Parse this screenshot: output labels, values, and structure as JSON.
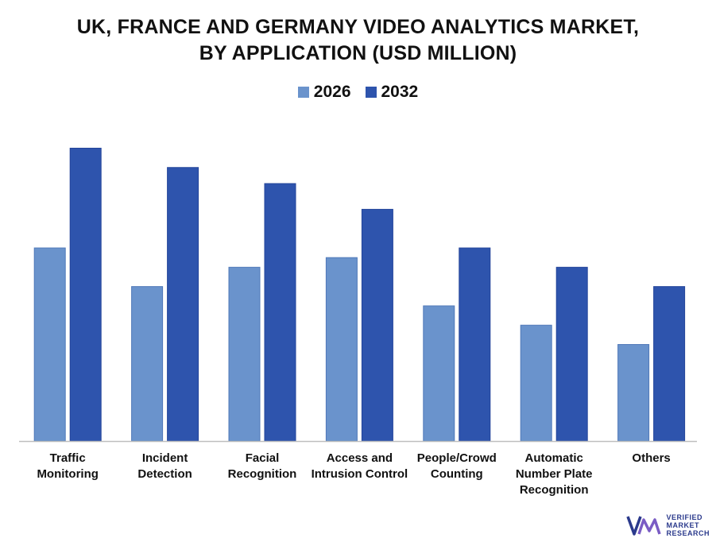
{
  "chart_data": {
    "type": "bar",
    "title_lines": [
      "UK, FRANCE AND GERMANY VIDEO ANALYTICS MARKET,",
      "BY APPLICATION (USD MILLION)"
    ],
    "categories": [
      [
        "Traffic",
        "Monitoring"
      ],
      [
        "Incident",
        "Detection"
      ],
      [
        "Facial",
        "Recognition"
      ],
      [
        "Access and",
        "Intrusion Control"
      ],
      [
        "People/Crowd",
        "Counting"
      ],
      [
        "Automatic",
        "Number Plate",
        "Recognition"
      ],
      [
        "Others"
      ]
    ],
    "series": [
      {
        "name": "2026",
        "color": "#6a93cc",
        "values": [
          60,
          48,
          54,
          57,
          42,
          36,
          30
        ]
      },
      {
        "name": "2032",
        "color": "#2e54ad",
        "values": [
          91,
          85,
          80,
          72,
          60,
          54,
          48
        ]
      }
    ],
    "ylim": [
      0,
      100
    ],
    "grid": false,
    "legend_position": "top-center"
  },
  "brand": {
    "lines": [
      "VERIFIED",
      "MARKET",
      "RESEARCH"
    ],
    "icon": "vmr-logo-icon"
  }
}
